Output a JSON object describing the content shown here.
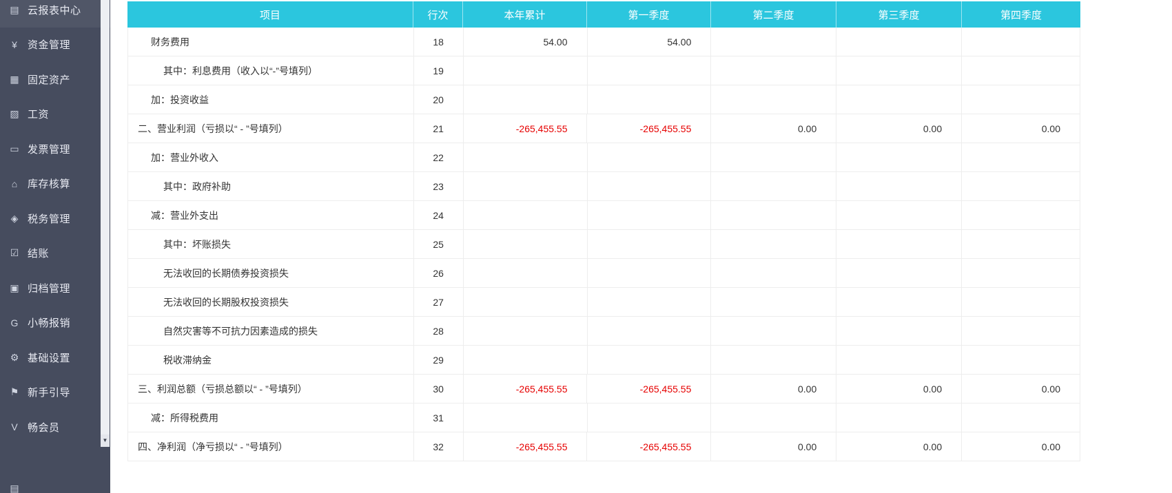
{
  "colors": {
    "sidebar_bg": "#464C5E",
    "sidebar_text": "#E8EAF2",
    "header_bg": "#2BC6DE",
    "negative_text": "#E60000"
  },
  "sidebar": {
    "scrollbar_arrow": "▼",
    "partial_item_icon": "▤",
    "items": [
      {
        "id": "cloud-report-center",
        "label": "云报表中心",
        "icon": "▤"
      },
      {
        "id": "fund-management",
        "label": "资金管理",
        "icon": "¥"
      },
      {
        "id": "fixed-assets",
        "label": "固定资产",
        "icon": "▦"
      },
      {
        "id": "payroll",
        "label": "工资",
        "icon": "▨"
      },
      {
        "id": "invoice-management",
        "label": "发票管理",
        "icon": "▭"
      },
      {
        "id": "inventory-accounting",
        "label": "库存核算",
        "icon": "⌂"
      },
      {
        "id": "tax-management",
        "label": "税务管理",
        "icon": "◈"
      },
      {
        "id": "closing",
        "label": "结账",
        "icon": "☑"
      },
      {
        "id": "archive-management",
        "label": "归档管理",
        "icon": "▣"
      },
      {
        "id": "xiaochang-reimburse",
        "label": "小畅报销",
        "icon": "G"
      },
      {
        "id": "basic-settings",
        "label": "基础设置",
        "icon": "⚙"
      },
      {
        "id": "beginner-guide",
        "label": "新手引导",
        "icon": "⚑"
      },
      {
        "id": "chang-member",
        "label": "畅会员",
        "icon": "V"
      }
    ]
  },
  "table": {
    "headers": [
      "项目",
      "行次",
      "本年累计",
      "第一季度",
      "第二季度",
      "第三季度",
      "第四季度"
    ],
    "rows": [
      {
        "item": "财务费用",
        "indent": 1,
        "line": "18",
        "values": [
          "54.00",
          "54.00",
          "",
          "",
          ""
        ]
      },
      {
        "item": "其中：利息费用（收入以“-”号填列）",
        "indent": 2,
        "line": "19",
        "values": [
          "",
          "",
          "",
          "",
          ""
        ]
      },
      {
        "item": "加：投资收益",
        "indent": 1,
        "line": "20",
        "values": [
          "",
          "",
          "",
          "",
          ""
        ]
      },
      {
        "item": "二、营业利润（亏损以“ - ”号填列）",
        "indent": 0,
        "line": "21",
        "values": [
          "-265,455.55",
          "-265,455.55",
          "0.00",
          "0.00",
          "0.00"
        ]
      },
      {
        "item": "加：营业外收入",
        "indent": 1,
        "line": "22",
        "values": [
          "",
          "",
          "",
          "",
          ""
        ]
      },
      {
        "item": "其中：政府补助",
        "indent": 2,
        "line": "23",
        "values": [
          "",
          "",
          "",
          "",
          ""
        ]
      },
      {
        "item": "减：营业外支出",
        "indent": 1,
        "line": "24",
        "values": [
          "",
          "",
          "",
          "",
          ""
        ]
      },
      {
        "item": "其中：坏账损失",
        "indent": 2,
        "line": "25",
        "values": [
          "",
          "",
          "",
          "",
          ""
        ]
      },
      {
        "item": "无法收回的长期债券投资损失",
        "indent": 2,
        "line": "26",
        "values": [
          "",
          "",
          "",
          "",
          ""
        ]
      },
      {
        "item": "无法收回的长期股权投资损失",
        "indent": 2,
        "line": "27",
        "values": [
          "",
          "",
          "",
          "",
          ""
        ]
      },
      {
        "item": "自然灾害等不可抗力因素造成的损失",
        "indent": 2,
        "line": "28",
        "values": [
          "",
          "",
          "",
          "",
          ""
        ]
      },
      {
        "item": "税收滞纳金",
        "indent": 2,
        "line": "29",
        "values": [
          "",
          "",
          "",
          "",
          ""
        ]
      },
      {
        "item": "三、利润总额（亏损总额以“ - ”号填列）",
        "indent": 0,
        "line": "30",
        "values": [
          "-265,455.55",
          "-265,455.55",
          "0.00",
          "0.00",
          "0.00"
        ]
      },
      {
        "item": "减：所得税费用",
        "indent": 1,
        "line": "31",
        "values": [
          "",
          "",
          "",
          "",
          ""
        ]
      },
      {
        "item": "四、净利润（净亏损以“ - ”号填列）",
        "indent": 0,
        "line": "32",
        "values": [
          "-265,455.55",
          "-265,455.55",
          "0.00",
          "0.00",
          "0.00"
        ]
      }
    ]
  }
}
